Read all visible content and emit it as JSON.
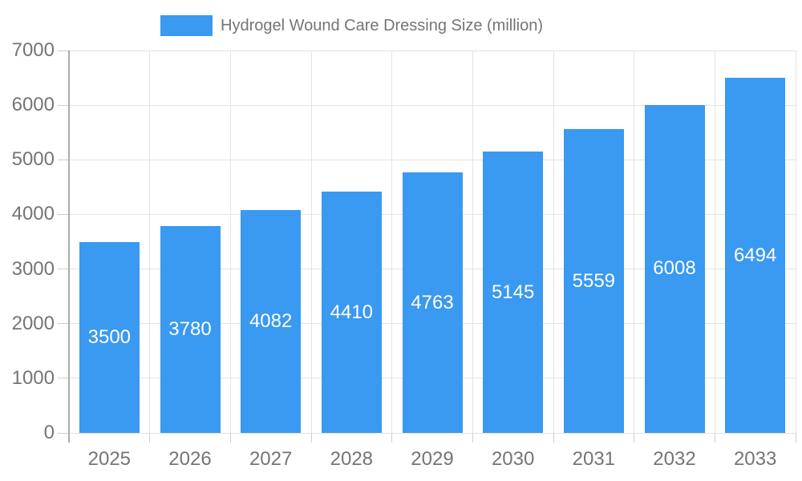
{
  "legend": {
    "label": "Hydrogel Wound Care Dressing Size (million)"
  },
  "chart_data": {
    "type": "bar",
    "title": "",
    "xlabel": "",
    "ylabel": "",
    "categories": [
      "2025",
      "2026",
      "2027",
      "2028",
      "2029",
      "2030",
      "2031",
      "2032",
      "2033"
    ],
    "series": [
      {
        "name": "Hydrogel Wound Care Dressing Size (million)",
        "values": [
          3500,
          3780,
          4082,
          4410,
          4763,
          5145,
          5559,
          6008,
          6494
        ]
      }
    ],
    "value_labels_shown": true,
    "ylim": [
      0,
      7000
    ],
    "yticks": [
      0,
      1000,
      2000,
      3000,
      4000,
      5000,
      6000,
      7000
    ],
    "grid": true,
    "legend_position": "top"
  },
  "colors": {
    "bar": "#3A99F0",
    "value_label": "#ffffff",
    "axis_text": "#757575",
    "legend_text": "#757575",
    "gridline": "#E3E3E3",
    "axis_line": "#ACACAC",
    "tick": "#CFCFCF",
    "background": "#ffffff"
  }
}
